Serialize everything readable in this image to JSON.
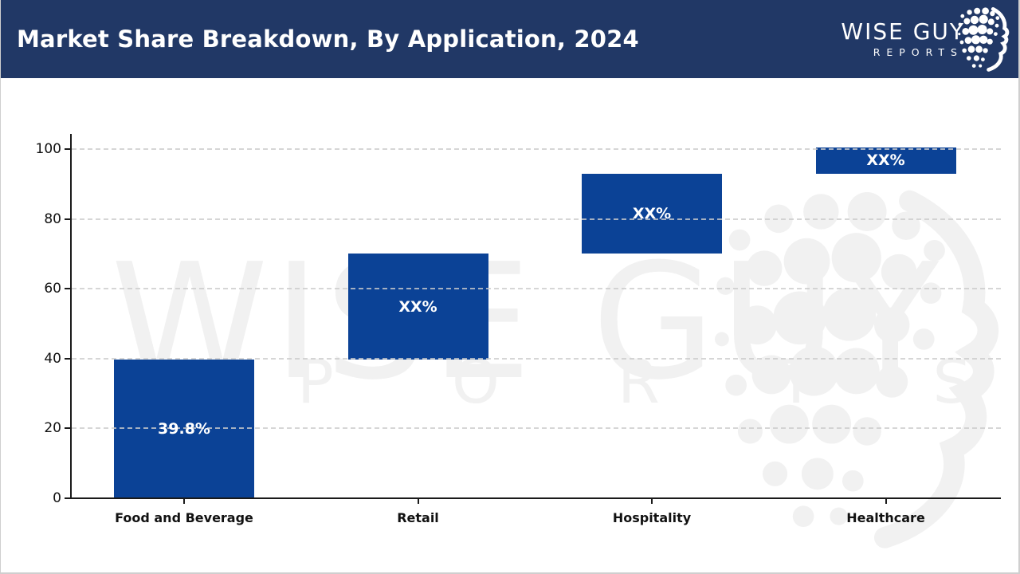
{
  "header": {
    "title": "Market Share Breakdown, By Application, 2024",
    "brand": {
      "line1": "WISE GUY",
      "line2": "REPORTS"
    },
    "bg_color": "#213866"
  },
  "watermark": {
    "line1": "WISE GUY",
    "line2": "P O R T S"
  },
  "chart_data": {
    "type": "bar",
    "subtype": "waterfall",
    "title": "Market Share Breakdown, By Application, 2024",
    "categories": [
      "Food and Beverage",
      "Retail",
      "Hospitality",
      "Healthcare"
    ],
    "segments": [
      {
        "category": "Food and Beverage",
        "start": 0,
        "end": 39.8,
        "label": "39.8%"
      },
      {
        "category": "Retail",
        "start": 39.8,
        "end": 70.0,
        "label": "XX%"
      },
      {
        "category": "Hospitality",
        "start": 70.0,
        "end": 93.0,
        "label": "XX%"
      },
      {
        "category": "Healthcare",
        "start": 93.0,
        "end": 100.5,
        "label": "XX%"
      }
    ],
    "y_ticks": [
      0,
      20,
      40,
      60,
      80,
      100
    ],
    "ylim": [
      0,
      105
    ],
    "grid": "horizontal-dashed",
    "legend": "none",
    "bar_color": "#0b4296",
    "bar_label_color": "#ffffff",
    "axis_color": "#1a1a1a"
  }
}
